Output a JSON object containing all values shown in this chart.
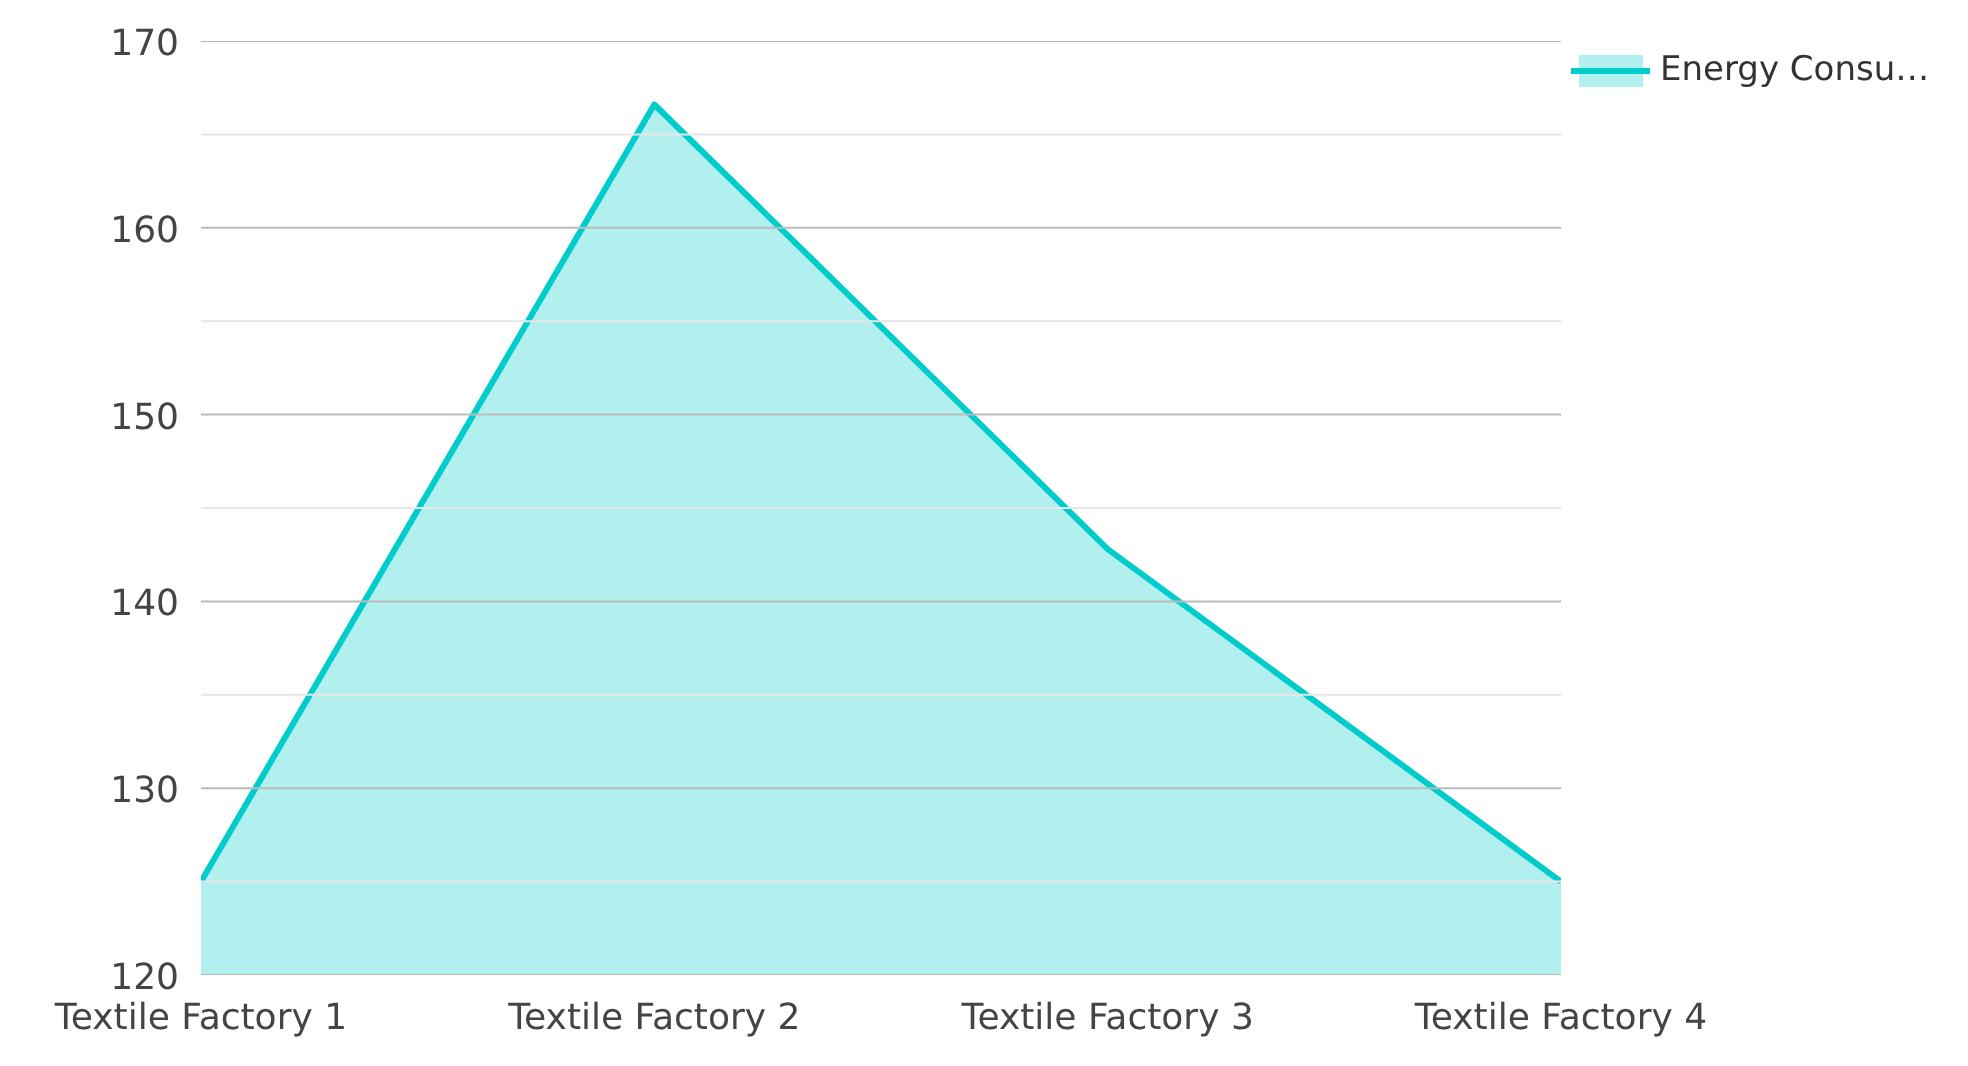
{
  "chart_data": {
    "type": "area",
    "categories": [
      "Textile Factory 1",
      "Textile Factory 2",
      "Textile Factory 3",
      "Textile Factory 4"
    ],
    "series": [
      {
        "name": "Energy Consu…",
        "color": "#00cccc",
        "values": [
          125,
          166.6,
          142.8,
          125
        ]
      }
    ],
    "ylim": [
      120,
      170
    ],
    "yticks": [
      120,
      {
        "value": 125,
        "label": null
      },
      130,
      {
        "value": 135,
        "label": null
      },
      140,
      {
        "value": 145,
        "label": null
      },
      150,
      {
        "value": 155,
        "label": null
      },
      160,
      {
        "value": 165,
        "label": null
      },
      170
    ],
    "grid": "y",
    "legend": "top right"
  }
}
